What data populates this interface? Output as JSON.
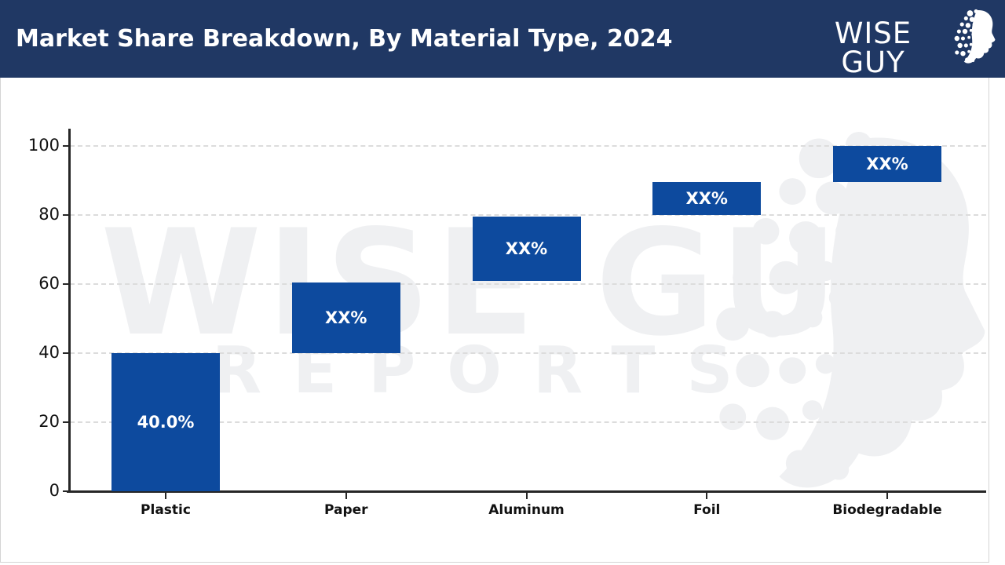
{
  "header": {
    "title": "Market Share Breakdown, By Material Type, 2024",
    "logo": {
      "line1": "WISE GUY",
      "line2": "REPORTS"
    }
  },
  "watermark": {
    "line1": "WISE GUY",
    "line2": "REPORTS"
  },
  "colors": {
    "header_bg": "#203864",
    "bar": "#0d4a9e",
    "bar_label": "#ffffff",
    "gridline": "#dcdcdc",
    "axis": "#262626",
    "watermark": "#eff0f2"
  },
  "chart_data": {
    "type": "bar",
    "variant": "waterfall",
    "title": "Market Share Breakdown, By Material Type, 2024",
    "categories": [
      "Plastic",
      "Paper",
      "Aluminum",
      "Foil",
      "Biodegradable"
    ],
    "bars": [
      {
        "category": "Plastic",
        "start": 0,
        "end": 40,
        "label": "40.0%"
      },
      {
        "category": "Paper",
        "start": 40,
        "end": 60.5,
        "label": "XX%"
      },
      {
        "category": "Aluminum",
        "start": 61,
        "end": 79.5,
        "label": "XX%"
      },
      {
        "category": "Foil",
        "start": 80,
        "end": 89.5,
        "label": "XX%"
      },
      {
        "category": "Biodegradable",
        "start": 89.5,
        "end": 100,
        "label": "XX%"
      }
    ],
    "y_ticks": [
      0,
      20,
      40,
      60,
      80,
      100
    ],
    "ylim": [
      0,
      105
    ],
    "xlabel": "",
    "ylabel": "",
    "grid": "horizontal-dashed",
    "legend": "none",
    "bar_color": "#0d4a9e",
    "bar_label_color": "#ffffff"
  }
}
